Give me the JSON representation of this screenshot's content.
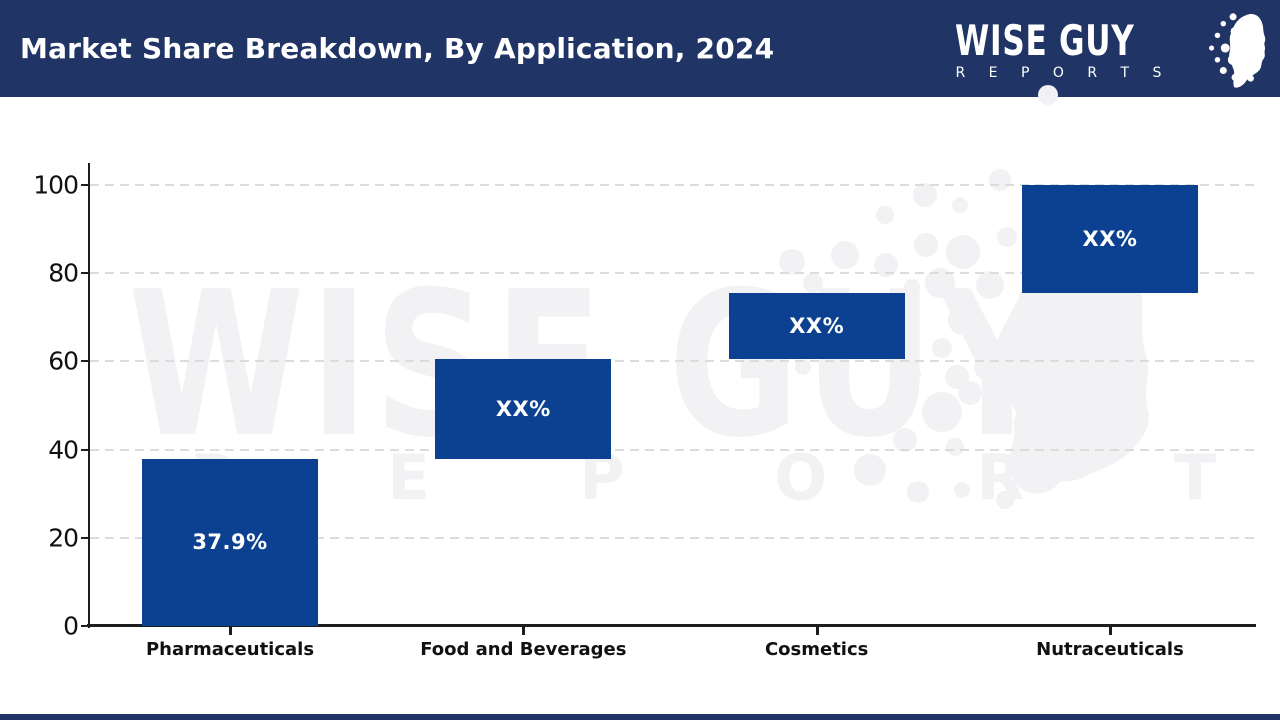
{
  "header": {
    "title": "Market Share Breakdown, By Application, 2024",
    "bg_color": "#203566",
    "logo": {
      "line1": "WISE GUY",
      "line2": "R E P O R T S",
      "face_icon": "dotted-face-profile"
    }
  },
  "watermark": {
    "line1": "WISE GUY",
    "line2": "R E P O R T S",
    "color": "#f2f2f4"
  },
  "chart_data": {
    "type": "bar",
    "subtype": "waterfall",
    "title": "Market Share Breakdown, By Application, 2024",
    "categories": [
      "Pharmaceuticals",
      "Food and Beverages",
      "Cosmetics",
      "Nutraceuticals"
    ],
    "segments": [
      {
        "category": "Pharmaceuticals",
        "start": 0,
        "end": 37.9,
        "label": "37.9%"
      },
      {
        "category": "Food and Beverages",
        "start": 37.9,
        "end": 60.5,
        "label": "XX%"
      },
      {
        "category": "Cosmetics",
        "start": 60.5,
        "end": 75.6,
        "label": "XX%"
      },
      {
        "category": "Nutraceuticals",
        "start": 75.6,
        "end": 100,
        "label": "XX%"
      }
    ],
    "y_ticks": [
      0,
      20,
      40,
      60,
      80,
      100
    ],
    "ylim": [
      0,
      105
    ],
    "xlabel": "",
    "ylabel": "",
    "grid": "horizontal-dashed",
    "legend": "none",
    "bar_color": "#0b4190",
    "bar_label_color": "#ffffff",
    "axis_color": "#1d1d1d",
    "gridline_color": "#dcdcdc"
  },
  "footer": {
    "bg_color": "#203566"
  }
}
